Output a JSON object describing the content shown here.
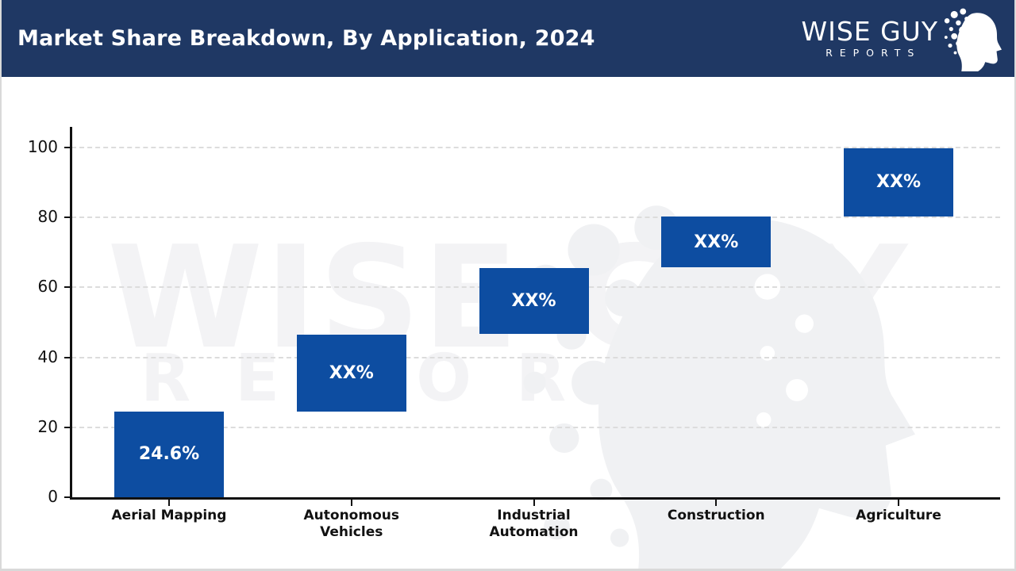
{
  "header": {
    "title": "Market Share Breakdown, By Application, 2024",
    "bg_color": "#1f3864",
    "logo": {
      "line1": "WISE GUY",
      "line2": "REPORTS"
    }
  },
  "watermark": {
    "line1": "WISE GUY",
    "line2": "REPORTS"
  },
  "chart_data": {
    "type": "bar",
    "subtype": "waterfall",
    "title": "Market Share Breakdown, By Application, 2024",
    "xlabel": "",
    "ylabel": "",
    "ylim": [
      0,
      100
    ],
    "y_ticks": [
      0,
      20,
      40,
      60,
      80,
      100
    ],
    "grid": "dashed-horizontal",
    "legend": "none",
    "bar_color": "#0d4da1",
    "bar_label_color": "#ffffff",
    "categories": [
      "Aerial Mapping",
      "Autonomous Vehicles",
      "Industrial Automation",
      "Construction",
      "Agriculture"
    ],
    "segments": [
      {
        "category": "Aerial Mapping",
        "start": 0,
        "end": 24.6,
        "label": "24.6%"
      },
      {
        "category": "Autonomous Vehicles",
        "start": 24.6,
        "end": 46.5,
        "label": "XX%"
      },
      {
        "category": "Industrial Automation",
        "start": 46.8,
        "end": 65.5,
        "label": "XX%"
      },
      {
        "category": "Construction",
        "start": 65.7,
        "end": 80.2,
        "label": "XX%"
      },
      {
        "category": "Agriculture",
        "start": 80.3,
        "end": 99.8,
        "label": "XX%"
      }
    ]
  }
}
